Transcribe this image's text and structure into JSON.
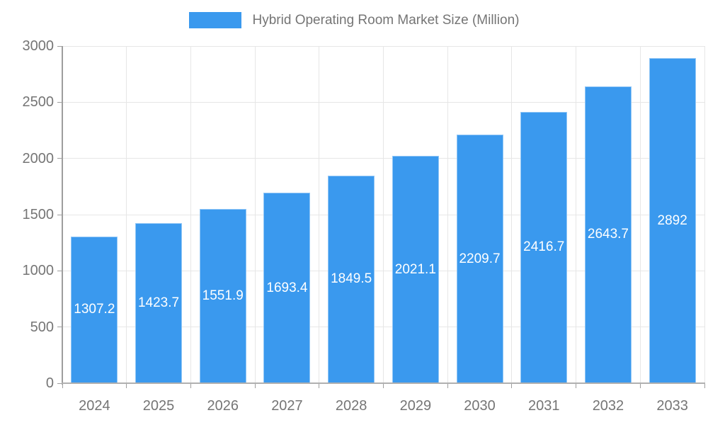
{
  "legend": {
    "title": "Hybrid Operating Room Market Size (Million)"
  },
  "colors": {
    "bar_fill": "#3a99ee",
    "bar_border": "rgba(255,255,255,0.45)",
    "grid": "#e6e6e6",
    "axis_x": "#b0b0b0",
    "axis_y": "#9e9e9e",
    "tick": "#9e9e9e",
    "axis_text": "#757575",
    "value_label_text": "#ffffff",
    "background": "#ffffff"
  },
  "chart_data": {
    "type": "bar",
    "title": "Hybrid Operating Room Market Size (Million)",
    "categories": [
      "2024",
      "2025",
      "2026",
      "2027",
      "2028",
      "2029",
      "2030",
      "2031",
      "2032",
      "2033"
    ],
    "values": [
      1307.2,
      1423.7,
      1551.9,
      1693.4,
      1849.5,
      2021.1,
      2209.7,
      2416.7,
      2643.7,
      2892
    ],
    "value_labels": [
      "1307.2",
      "1423.7",
      "1551.9",
      "1693.4",
      "1849.5",
      "2021.1",
      "2209.7",
      "2416.7",
      "2643.7",
      "2892"
    ],
    "xlabel": "",
    "ylabel": "",
    "ylim": [
      0,
      3000
    ],
    "y_ticks": [
      0,
      500,
      1000,
      1500,
      2000,
      2500,
      3000
    ],
    "grid": true,
    "legend_position": "top-center",
    "value_label_position": "center-of-bar"
  }
}
